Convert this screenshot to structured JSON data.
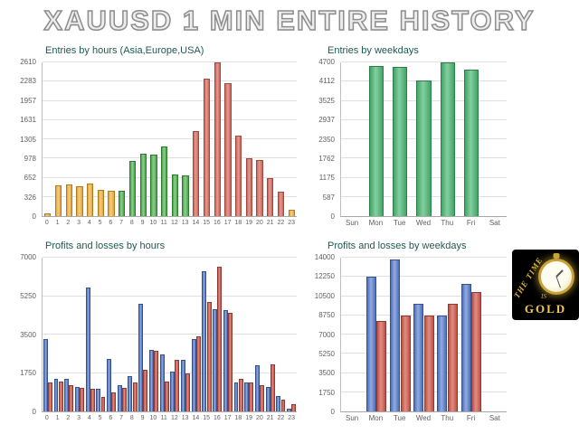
{
  "page_title": "XAUUSD 1 MIN ENTIRE HISTORY",
  "palette": {
    "asia": {
      "base": "#E2A33C",
      "light": "#F5CE7E",
      "border": "#B07C1E"
    },
    "europe": {
      "base": "#4BA14B",
      "light": "#8CD08C",
      "border": "#2F7C2F"
    },
    "usa": {
      "base": "#CA6459",
      "light": "#E59A90",
      "border": "#9E4A41"
    },
    "weekday_green": {
      "base": "#43A466",
      "light": "#83CFA0",
      "border": "#2E7D4C"
    },
    "profit_blue": {
      "base": "#4C70BB",
      "light": "#93ACE0",
      "border": "#36528F"
    },
    "loss_red": {
      "base": "#C05045",
      "light": "#DF8E84",
      "border": "#8F3B34"
    }
  },
  "chart_data": [
    {
      "type": "bar",
      "title": "Entries by hours (Asia,Europe,USA)",
      "categories": [
        "0",
        "1",
        "2",
        "3",
        "4",
        "5",
        "6",
        "7",
        "8",
        "9",
        "10",
        "11",
        "12",
        "13",
        "14",
        "15",
        "16",
        "17",
        "18",
        "19",
        "20",
        "21",
        "22",
        "23"
      ],
      "values": [
        40,
        520,
        530,
        510,
        560,
        440,
        430,
        430,
        930,
        1060,
        1040,
        1190,
        700,
        695,
        1450,
        2330,
        2610,
        2250,
        1360,
        990,
        945,
        650,
        420,
        110
      ],
      "bar_colors": [
        "asia",
        "asia",
        "asia",
        "asia",
        "asia",
        "asia",
        "asia",
        "europe",
        "europe",
        "europe",
        "europe",
        "europe",
        "europe",
        "europe",
        "usa",
        "usa",
        "usa",
        "usa",
        "usa",
        "usa",
        "usa",
        "usa",
        "usa",
        "asia"
      ],
      "ylim": [
        0,
        2610
      ],
      "yticks": [
        0,
        326,
        652,
        978,
        1305,
        1631,
        1957,
        2283,
        2610
      ],
      "grid": true,
      "legend": "none"
    },
    {
      "type": "bar",
      "title": "Entries by weekdays",
      "categories": [
        "Sun",
        "Mon",
        "Tue",
        "Wed",
        "Thu",
        "Fri",
        "Sat"
      ],
      "values": [
        0,
        4600,
        4560,
        4150,
        4690,
        4470,
        0
      ],
      "bar_colors": [
        "weekday_green",
        "weekday_green",
        "weekday_green",
        "weekday_green",
        "weekday_green",
        "weekday_green",
        "weekday_green"
      ],
      "ylim": [
        0,
        4700
      ],
      "yticks": [
        0,
        587,
        1175,
        1762,
        2350,
        2937,
        3525,
        4112,
        4700
      ],
      "grid": true,
      "legend": "none"
    },
    {
      "type": "bar",
      "title": "Profits and losses by hours",
      "categories": [
        "0",
        "1",
        "2",
        "3",
        "4",
        "5",
        "6",
        "7",
        "8",
        "9",
        "10",
        "11",
        "12",
        "13",
        "14",
        "15",
        "16",
        "17",
        "18",
        "19",
        "20",
        "21",
        "22",
        "23"
      ],
      "series": [
        {
          "name": "profits",
          "color": "profit_blue",
          "values": [
            3300,
            1500,
            1500,
            1100,
            5650,
            1050,
            2400,
            1210,
            1600,
            4900,
            2800,
            2600,
            1800,
            2350,
            3300,
            6400,
            4650,
            4600,
            1300,
            1300,
            2100,
            1130,
            710,
            120
          ]
        },
        {
          "name": "losses",
          "color": "loss_red",
          "values": [
            1300,
            1350,
            1200,
            1090,
            1050,
            670,
            880,
            1090,
            1300,
            1890,
            2760,
            1380,
            2340,
            1720,
            3400,
            5000,
            6580,
            4480,
            1470,
            1300,
            1210,
            2140,
            550,
            340
          ]
        }
      ],
      "ylim": [
        0,
        7000
      ],
      "yticks": [
        0,
        1750,
        3500,
        5250,
        7000
      ],
      "grid": true,
      "legend": "none"
    },
    {
      "type": "bar",
      "title": "Profits and losses by weekdays",
      "categories": [
        "Sun",
        "Mon",
        "Tue",
        "Wed",
        "Thu",
        "Fri",
        "Sat"
      ],
      "series": [
        {
          "name": "profits",
          "color": "profit_blue",
          "values": [
            0,
            12250,
            13800,
            9800,
            8750,
            11600,
            0
          ]
        },
        {
          "name": "losses",
          "color": "loss_red",
          "values": [
            0,
            8200,
            8750,
            8700,
            9800,
            10900,
            0
          ]
        }
      ],
      "ylim": [
        0,
        14000
      ],
      "yticks": [
        0,
        1750,
        3500,
        5250,
        7000,
        8750,
        10500,
        12250,
        14000
      ],
      "grid": true,
      "legend": "none"
    }
  ],
  "logo": {
    "line1": "THE TIME",
    "line2": "IS",
    "line3": "GOLD"
  }
}
